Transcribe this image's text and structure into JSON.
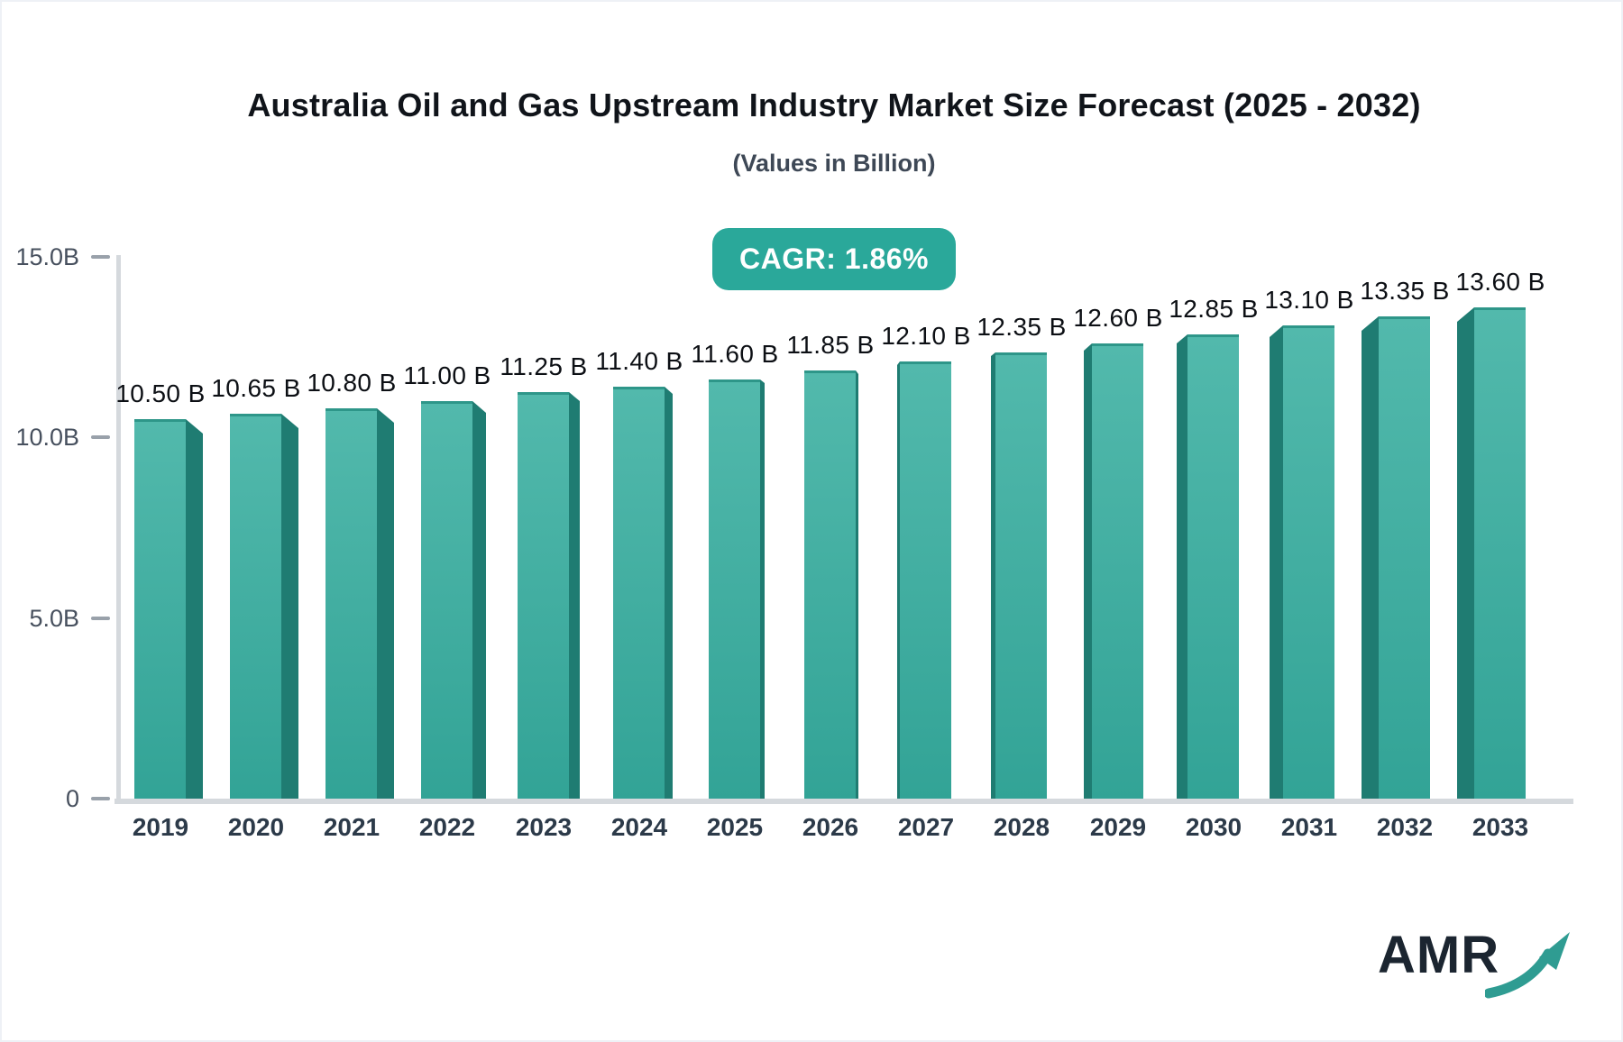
{
  "header": {
    "title": "Australia Oil and Gas Upstream Industry Market Size Forecast (2025 - 2032)",
    "subtitle": "(Values in Billion)"
  },
  "badge": {
    "label": "CAGR: 1.86%"
  },
  "chart_data": {
    "type": "bar",
    "title": "Australia Oil and Gas Upstream Industry Market Size Forecast (2025 - 2032)",
    "subtitle": "(Values in Billion)",
    "unit": "Billion",
    "cagr_percent": 1.86,
    "categories": [
      "2019",
      "2020",
      "2021",
      "2022",
      "2023",
      "2024",
      "2025",
      "2026",
      "2027",
      "2028",
      "2029",
      "2030",
      "2031",
      "2032",
      "2033"
    ],
    "values": [
      10.5,
      10.65,
      10.8,
      11.0,
      11.25,
      11.4,
      11.6,
      11.85,
      12.1,
      12.35,
      12.6,
      12.85,
      13.1,
      13.35,
      13.6
    ],
    "value_labels": [
      "10.50 B",
      "10.65 B",
      "10.80 B",
      "11.00 B",
      "11.25 B",
      "11.40 B",
      "11.60 B",
      "11.85 B",
      "12.10 B",
      "12.35 B",
      "12.60 B",
      "12.85 B",
      "13.10 B",
      "13.35 B",
      "13.60 B"
    ],
    "xlabel": "",
    "ylabel": "",
    "ylim": [
      0,
      15
    ],
    "yticks": [
      {
        "label": "15.0B",
        "value": 15
      },
      {
        "label": "10.0B",
        "value": 10
      },
      {
        "label": "5.0B",
        "value": 5
      },
      {
        "label": "0",
        "value": 0
      }
    ],
    "grid": false,
    "legend": null,
    "style": "3d-extruded-bars-center-perspective"
  },
  "logo": {
    "text": "AMR",
    "icon": "growth-arrow-icon"
  },
  "colors": {
    "badge_bg": "#2aa89a",
    "bar_face_top": "#52b9ac",
    "bar_face_bottom": "#32a396",
    "bar_face_edge": "#2e9689",
    "bar_side": "#1f7c72",
    "axis_line": "#d5d9dd",
    "tick_dash": "#99a1aa",
    "logo_text": "#1b2530",
    "logo_arrow": "#2f9c92"
  }
}
